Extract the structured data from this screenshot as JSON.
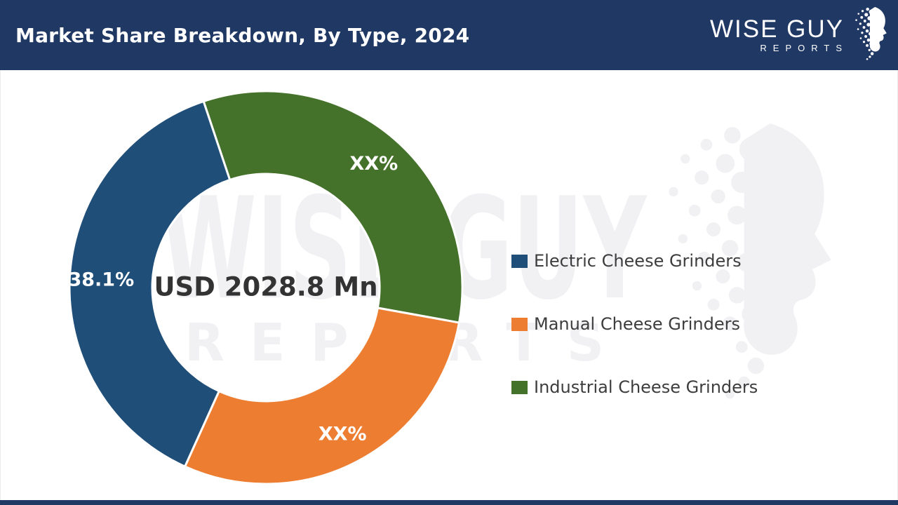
{
  "header": {
    "title": "Market Share Breakdown, By Type, 2024",
    "logo": {
      "name": "WISE GUY",
      "subname": "REPORTS"
    },
    "background_color": "#203864"
  },
  "chart_data": {
    "type": "pie",
    "style": "donut",
    "title": "Market Share Breakdown, By Type, 2024",
    "center_label": "USD 2028.8 Mn",
    "start_angle_deg": -18.5,
    "direction": "clockwise",
    "legend_position": "right",
    "slices": [
      {
        "label": "Industrial Cheese Grinders",
        "display_value": "XX%",
        "percent": 33.0,
        "color": "#45722A"
      },
      {
        "label": "Manual Cheese Grinders",
        "display_value": "XX%",
        "percent": 28.9,
        "color": "#ED7D31"
      },
      {
        "label": "Electric Cheese Grinders",
        "display_value": "38.1%",
        "percent": 38.1,
        "color": "#1F4E79"
      }
    ]
  },
  "legend": {
    "items": [
      {
        "label": "Electric Cheese Grinders",
        "color": "#1F4E79"
      },
      {
        "label": "Manual Cheese Grinders",
        "color": "#ED7D31"
      },
      {
        "label": "Industrial Cheese Grinders",
        "color": "#45722A"
      }
    ]
  },
  "watermark": {
    "line1": "WISE GUY",
    "line2": "REPORTS"
  },
  "footer": {
    "bar_color": "#203864"
  }
}
